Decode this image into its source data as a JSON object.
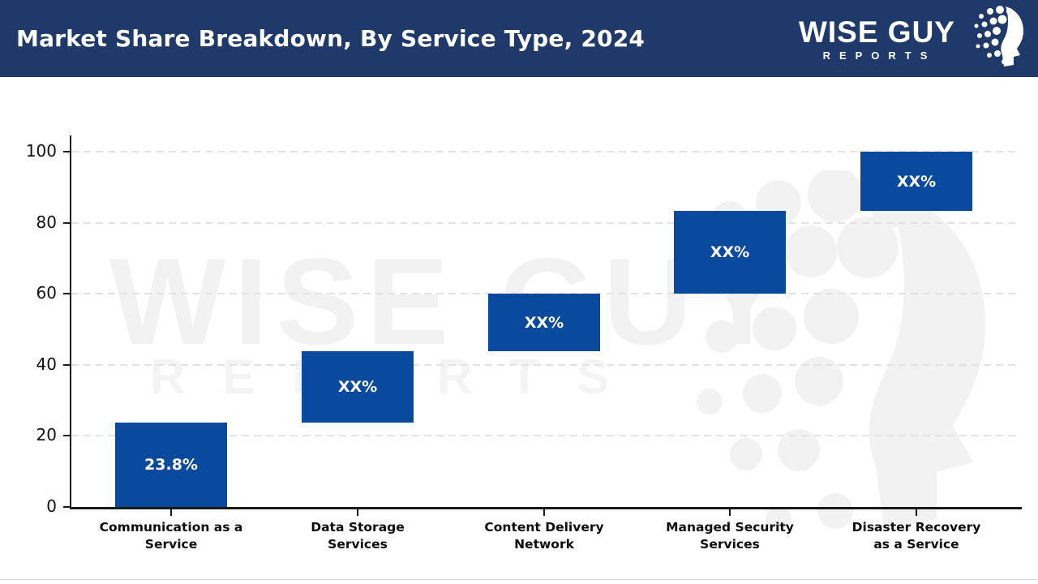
{
  "header": {
    "title": "Market Share Breakdown, By Service Type, 2024",
    "logo_line1": "WISE GUY",
    "logo_line2": "REPORTS"
  },
  "watermark": {
    "line1": "WISE GUY",
    "line2": "REPORTS"
  },
  "colors": {
    "header_bg": "#1f3a6a",
    "bar": "#0a4a9e",
    "axis": "#1a1a1a",
    "grid": "#e3e3e3"
  },
  "chart_data": {
    "type": "bar",
    "subtype": "waterfall",
    "title": "Market Share Breakdown, By Service Type, 2024",
    "xlabel": "",
    "ylabel": "",
    "ylim": [
      0,
      100
    ],
    "yticks": [
      0,
      20,
      40,
      60,
      80,
      100
    ],
    "grid": "horizontal-dashed",
    "legend": "none",
    "categories": [
      "Communication as a Service",
      "Data Storage Services",
      "Content Delivery Network",
      "Managed Security Services",
      "Disaster Recovery as a Service"
    ],
    "category_label_lines": [
      "Communication as a\nService",
      "Data Storage\nServices",
      "Content Delivery\nNetwork",
      "Managed Security\nServices",
      "Disaster Recovery\nas a Service"
    ],
    "segments": [
      {
        "start": 0,
        "end": 23.8,
        "label": "23.8%"
      },
      {
        "start": 23.8,
        "end": 43.8,
        "label": "XX%"
      },
      {
        "start": 43.8,
        "end": 60,
        "label": "XX%"
      },
      {
        "start": 60,
        "end": 83.3,
        "label": "XX%"
      },
      {
        "start": 83.3,
        "end": 100,
        "label": "XX%"
      }
    ]
  }
}
